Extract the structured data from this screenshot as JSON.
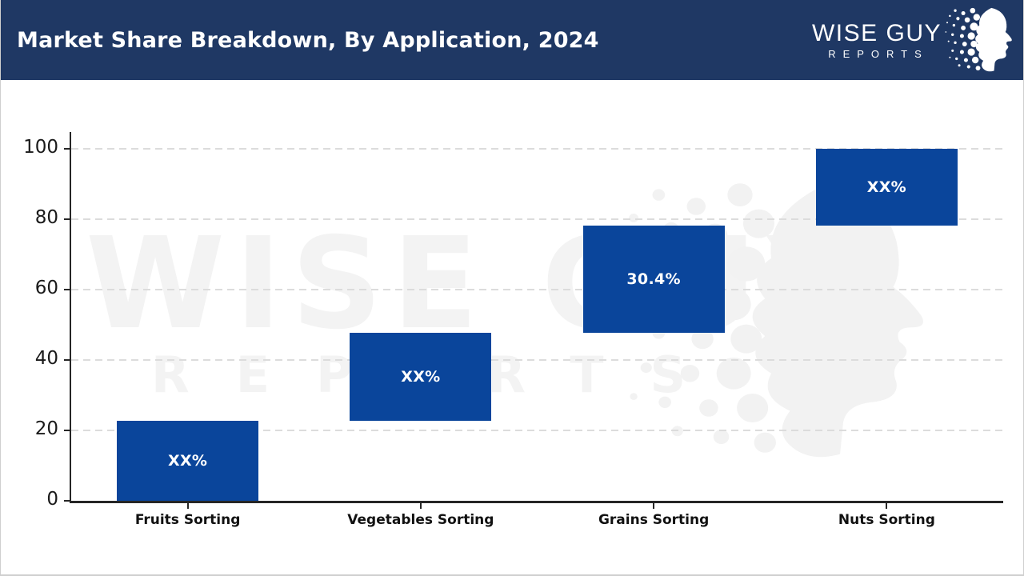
{
  "header": {
    "title": "Market Share Breakdown, By Application, 2024",
    "logo": {
      "brand_line1": "WISE GUY",
      "brand_line2": "REPORTS"
    }
  },
  "watermark": {
    "line1": "WISE GUY",
    "line2": "REPORTS"
  },
  "colors": {
    "header_bg": "#1f3864",
    "bar": "#0a459b",
    "axis": "#262626",
    "grid": "#dcdcdc",
    "watermark": "#f3f3f3",
    "title_text": "#ffffff",
    "bar_label_text": "#ffffff"
  },
  "chart_data": {
    "type": "bar",
    "variant": "waterfall",
    "title": "Market Share Breakdown, By Application, 2024",
    "categories": [
      "Fruits Sorting",
      "Vegetables Sorting",
      "Grains Sorting",
      "Nuts Sorting"
    ],
    "segments": [
      {
        "start": 0,
        "end": 22.7,
        "label": "XX%"
      },
      {
        "start": 22.7,
        "end": 47.8,
        "label": "XX%"
      },
      {
        "start": 47.8,
        "end": 78.2,
        "label": "30.4%"
      },
      {
        "start": 78.2,
        "end": 100,
        "label": "XX%"
      }
    ],
    "xlabel": "",
    "ylabel": "",
    "ylim": [
      0,
      100
    ],
    "yticks": [
      0,
      20,
      40,
      60,
      80,
      100
    ],
    "grid": "horizontal-dashed",
    "legend": "none"
  }
}
